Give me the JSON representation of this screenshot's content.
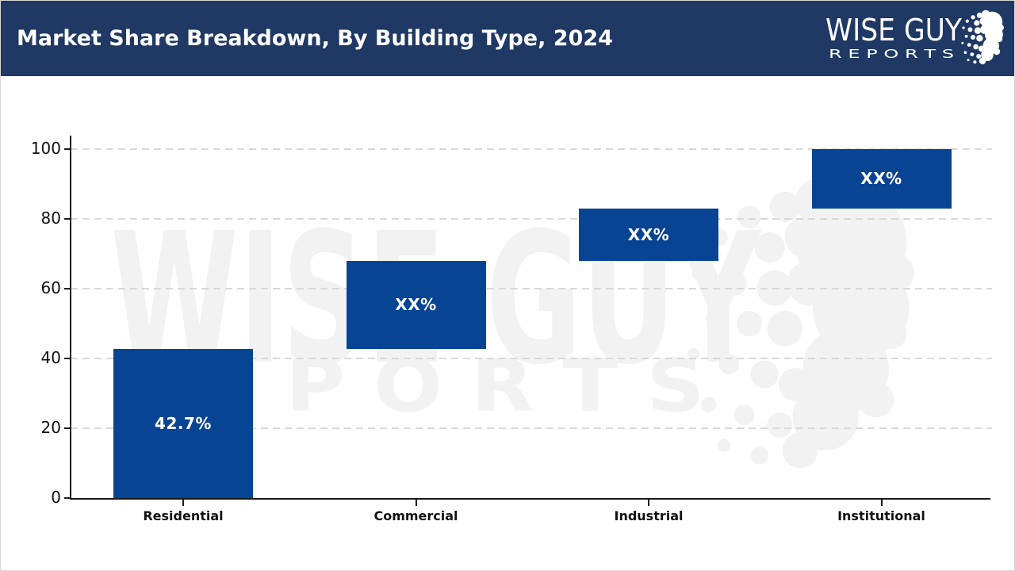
{
  "header": {
    "title": "Market Share Breakdown, By Building Type, 2024",
    "bg_color": "#1f3864",
    "logo": {
      "brand_line1": "WISE GUY",
      "brand_line2": "R E P O R T S"
    }
  },
  "watermark": {
    "line1": "WISE GUY",
    "line2": "R E P O R T S"
  },
  "chart_data": {
    "type": "bar",
    "subtype": "waterfall",
    "title": "Market Share Breakdown, By Building Type, 2024",
    "categories": [
      "Residential",
      "Commercial",
      "Industrial",
      "Institutional"
    ],
    "series": [
      {
        "name": "Market share (%)",
        "segments": [
          {
            "category": "Residential",
            "start": 0,
            "end": 42.7,
            "label": "42.7%"
          },
          {
            "category": "Commercial",
            "start": 42.7,
            "end": 68,
            "label": "XX%"
          },
          {
            "category": "Industrial",
            "start": 68,
            "end": 83,
            "label": "XX%"
          },
          {
            "category": "Institutional",
            "start": 83,
            "end": 100,
            "label": "XX%"
          }
        ]
      }
    ],
    "xlabel": "",
    "ylabel": "",
    "y_ticks": [
      0,
      20,
      40,
      60,
      80,
      100
    ],
    "ylim": [
      0,
      105
    ],
    "grid": "horizontal-dashed",
    "legend": "none",
    "colors": {
      "bar": "#084494",
      "axis": "#1a1a1a",
      "gridline": "#d9d9d9",
      "bar_label": "#ffffff",
      "tick_label": "#111111",
      "header_bg": "#1f3864",
      "watermark": "#f2f2f2"
    }
  }
}
